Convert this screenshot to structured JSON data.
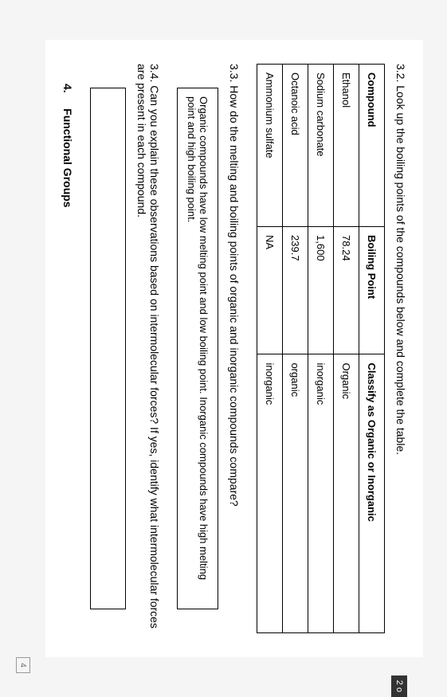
{
  "sideTab": "2 o",
  "q32": {
    "number": "3.2.",
    "text": "Look up the boiling points of the compounds below and complete the table."
  },
  "table": {
    "headers": [
      "Compound",
      "Boiling Point",
      "Classify as Organic or Inorganic"
    ],
    "rows": [
      [
        "Ethanol",
        "78.24",
        "Organic"
      ],
      [
        "Sodium carbonate",
        "1,600",
        "inorganic"
      ],
      [
        "Octanoic acid",
        "239.7",
        "organic"
      ],
      [
        "Ammonium sulfate",
        "NA",
        "inorganic"
      ]
    ]
  },
  "q33": {
    "number": "3.3.",
    "text": "How do the melting and boiling points of organic and inorganic compounds compare?"
  },
  "answer33": "Organic compounds have low melting point and low boiling point. Inorganic compounds have high melting point and high boiling point.",
  "q34": {
    "number": "3.4.",
    "text": "Can you explain these observations based on intermolecular forces? If yes, identify what intermolecular forces are present in each compound."
  },
  "q4": {
    "number": "4.",
    "text": "Functional Groups"
  },
  "navBox": "4"
}
